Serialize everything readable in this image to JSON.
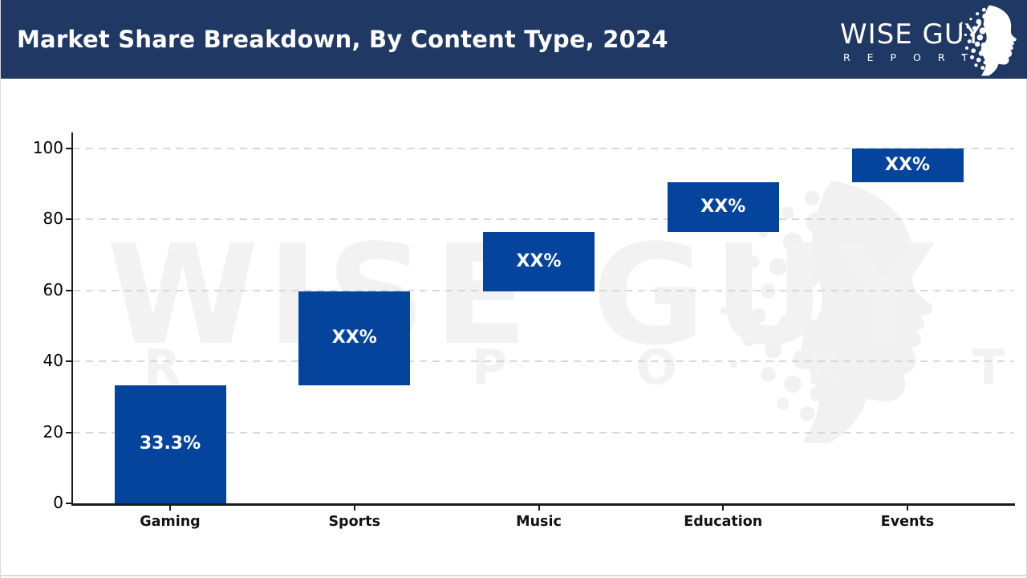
{
  "header": {
    "title": "Market Share Breakdown, By Content Type, 2024",
    "logo": {
      "line1": "WISE GUY",
      "line2": "R E P O R T S"
    }
  },
  "watermark": {
    "line1": "WISE GUY",
    "line2": "R E P O R T S"
  },
  "chart_data": {
    "type": "bar",
    "subtype": "waterfall",
    "title": "Market Share Breakdown, By Content Type, 2024",
    "categories": [
      "Gaming",
      "Sports",
      "Music",
      "Education",
      "Events"
    ],
    "segments": [
      {
        "category": "Gaming",
        "start": 0,
        "end": 33.3,
        "label": "33.3%"
      },
      {
        "category": "Sports",
        "start": 33.3,
        "end": 59.7,
        "label": "XX%"
      },
      {
        "category": "Music",
        "start": 59.7,
        "end": 76.4,
        "label": "XX%"
      },
      {
        "category": "Education",
        "start": 76.4,
        "end": 90.5,
        "label": "XX%"
      },
      {
        "category": "Events",
        "start": 90.5,
        "end": 100,
        "label": "XX%"
      }
    ],
    "yticks": [
      0,
      20,
      40,
      60,
      80,
      100
    ],
    "ylim": [
      0,
      104.5
    ],
    "xlabel": "",
    "ylabel": "",
    "grid": "horizontal-dashed",
    "legend": "none",
    "bar_color": "#05449D",
    "bar_label_color": "#FFFFFF"
  },
  "colors": {
    "header_bg": "#1F3864",
    "bar": "#05449D",
    "grid": "#D8D8D8",
    "axis": "#1A1A1A",
    "watermark": "#F2F2F2"
  }
}
